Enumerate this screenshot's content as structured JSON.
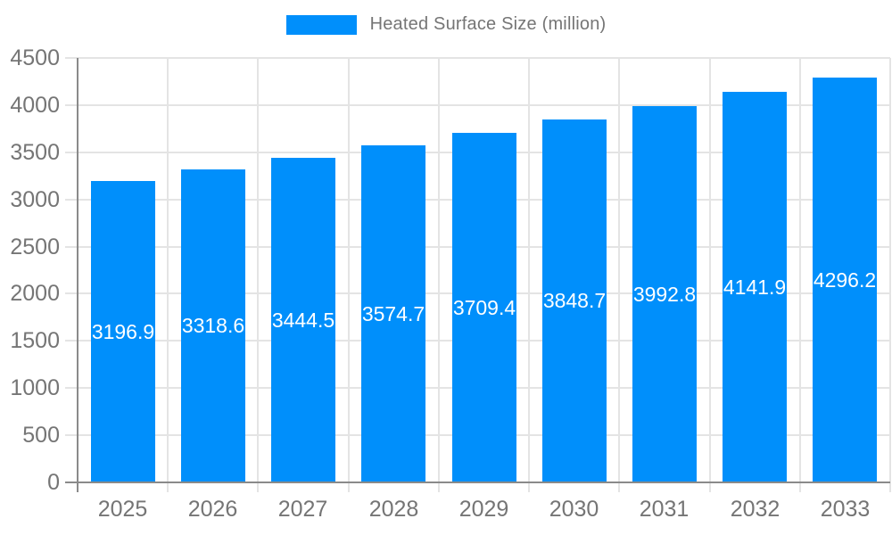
{
  "chart_data": {
    "type": "bar",
    "title": "",
    "legend": "Heated Surface Size (million)",
    "legend_position": "top",
    "categories": [
      "2025",
      "2026",
      "2027",
      "2028",
      "2029",
      "2030",
      "2031",
      "2032",
      "2033"
    ],
    "series": [
      {
        "name": "Heated Surface Size (million)",
        "values": [
          3196.9,
          3318.6,
          3444.5,
          3574.7,
          3709.4,
          3848.7,
          3992.8,
          4141.9,
          4296.2
        ]
      }
    ],
    "data_labels": [
      "3196.9",
      "3318.6",
      "3444.5",
      "3574.7",
      "3709.4",
      "3848.7",
      "3992.8",
      "4141.9",
      "4296.2"
    ],
    "xlabel": "",
    "ylabel": "",
    "ylim": [
      0,
      4500
    ],
    "ytick_step": 500,
    "yticks": [
      0,
      500,
      1000,
      1500,
      2000,
      2500,
      3000,
      3500,
      4000,
      4500
    ],
    "grid": true,
    "colors": {
      "bar": "#008FFB",
      "grid": "#e4e4e4",
      "axis": "#8a8a8a",
      "axis_text": "#757575",
      "legend_text": "#757575",
      "data_label_text": "#ffffff",
      "background": "#ffffff"
    }
  }
}
